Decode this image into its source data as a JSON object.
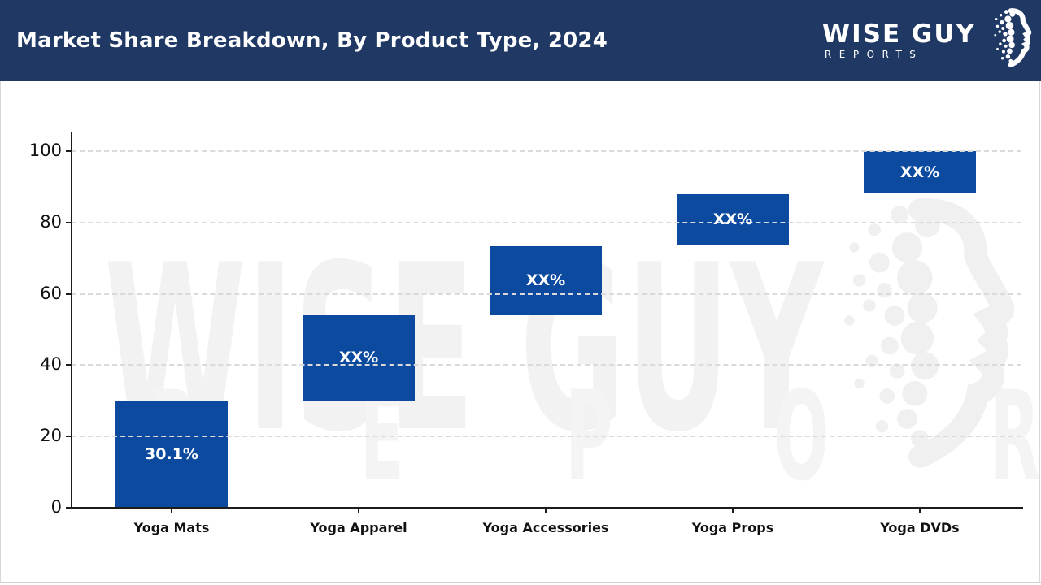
{
  "header": {
    "title": "Market Share Breakdown, By Product Type, 2024",
    "logo": {
      "line1": "WISE GUY",
      "line2": "REPORTS"
    }
  },
  "watermark": {
    "line1": "WISE GUY",
    "line2": "R E P O R T S"
  },
  "colors": {
    "header_bg": "#1F3864",
    "bar": "#0B4A9F",
    "grid": "#DADADA",
    "axis": "#1C1C1C",
    "tick_text": "#111111",
    "bar_label_text": "#FFFFFF",
    "watermark": "#F2F2F2"
  },
  "chart_data": {
    "type": "bar",
    "subtype": "waterfall",
    "title": "Market Share Breakdown, By Product Type, 2024",
    "xlabel": "",
    "ylabel": "",
    "ylim": [
      0,
      105
    ],
    "y_ticks": [
      0,
      20,
      40,
      60,
      80,
      100
    ],
    "grid": "horizontal-dashed-over-bars",
    "legend": "none",
    "categories": [
      "Yoga Mats",
      "Yoga Apparel",
      "Yoga Accessories",
      "Yoga Props",
      "Yoga DVDs"
    ],
    "segments": [
      {
        "category": "Yoga Mats",
        "start": 0,
        "end": 30.1,
        "label": "30.1%"
      },
      {
        "category": "Yoga Apparel",
        "start": 30.1,
        "end": 54,
        "label": "XX%"
      },
      {
        "category": "Yoga Accessories",
        "start": 54,
        "end": 73.4,
        "label": "XX%"
      },
      {
        "category": "Yoga Props",
        "start": 73.6,
        "end": 88,
        "label": "XX%"
      },
      {
        "category": "Yoga DVDs",
        "start": 88.2,
        "end": 100,
        "label": "XX%"
      }
    ]
  }
}
